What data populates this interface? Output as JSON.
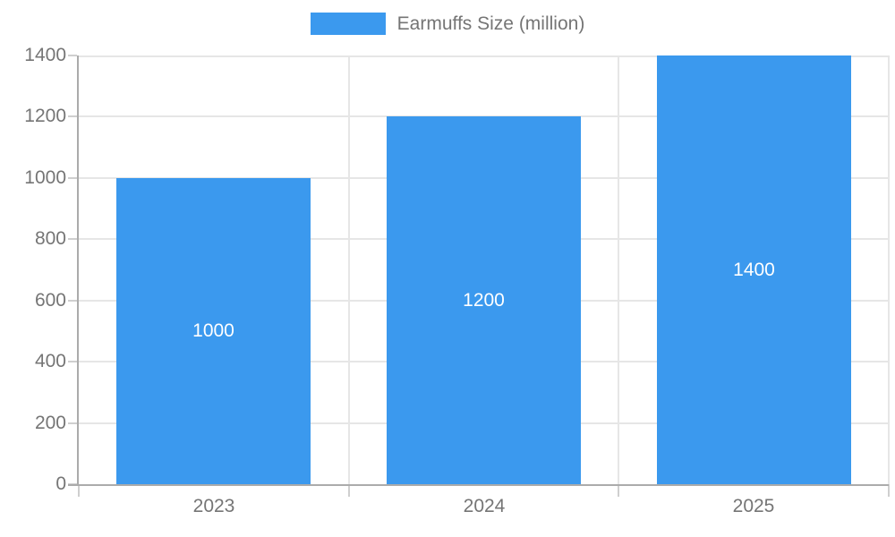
{
  "chart_data": {
    "type": "bar",
    "legend": {
      "position": "top",
      "label": "Earmuffs Size (million)"
    },
    "categories": [
      "2023",
      "2024",
      "2025"
    ],
    "series": [
      {
        "name": "Earmuffs Size (million)",
        "values": [
          1000,
          1200,
          1400
        ]
      }
    ],
    "xlabel": "",
    "ylabel": "",
    "ylim": [
      0,
      1400
    ],
    "ytick_step": 200,
    "grid": true,
    "bar_color": "#3b99ee",
    "value_label_color": "#ffffff",
    "grid_color": "#e6e6e6",
    "tick_color": "#cfcfcf",
    "axis_color": "#ababab",
    "text_color": "#757575",
    "background_color": "#ffffff"
  }
}
